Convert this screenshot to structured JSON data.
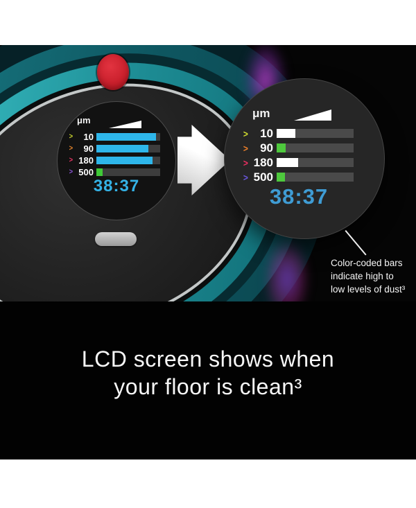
{
  "screens": {
    "small": {
      "unit": "μm",
      "chevron": ">",
      "timer": "38:37",
      "timer_color": "#34b2e6",
      "rows": [
        {
          "label": "10",
          "chevron_color": "#c9d42e",
          "fill_color": "#2eb6ea",
          "fill_pct": 94
        },
        {
          "label": "90",
          "chevron_color": "#e8862c",
          "fill_color": "#2eb6ea",
          "fill_pct": 81
        },
        {
          "label": "180",
          "chevron_color": "#ea3566",
          "fill_color": "#2eb6ea",
          "fill_pct": 88
        },
        {
          "label": "500",
          "chevron_color": "#8a55d6",
          "fill_color": "#3fc937",
          "fill_pct": 10
        }
      ]
    },
    "large": {
      "unit": "μm",
      "chevron": ">",
      "timer": "38:37",
      "timer_color": "#3f9cd4",
      "rows": [
        {
          "label": "10",
          "chevron_color": "#d2dd30",
          "fill_color": "#ffffff",
          "fill_pct": 24
        },
        {
          "label": "90",
          "chevron_color": "#ee802a",
          "fill_color": "#4ec93d",
          "fill_pct": 12
        },
        {
          "label": "180",
          "chevron_color": "#ee2f62",
          "fill_color": "#ffffff",
          "fill_pct": 28
        },
        {
          "label": "500",
          "chevron_color": "#6a57dd",
          "fill_color": "#4ec93d",
          "fill_pct": 11
        }
      ]
    }
  },
  "annotation": {
    "lines": [
      "Color-coded bars",
      "indicate high to",
      "low levels of dust³"
    ]
  },
  "headline": {
    "lines": [
      "LCD screen shows when",
      "your floor is clean³"
    ]
  },
  "product": {
    "power_button_color": "#d01f2e",
    "ring_color_bright": "#2fb3ba",
    "ring_color_dark": "#0e5660"
  }
}
